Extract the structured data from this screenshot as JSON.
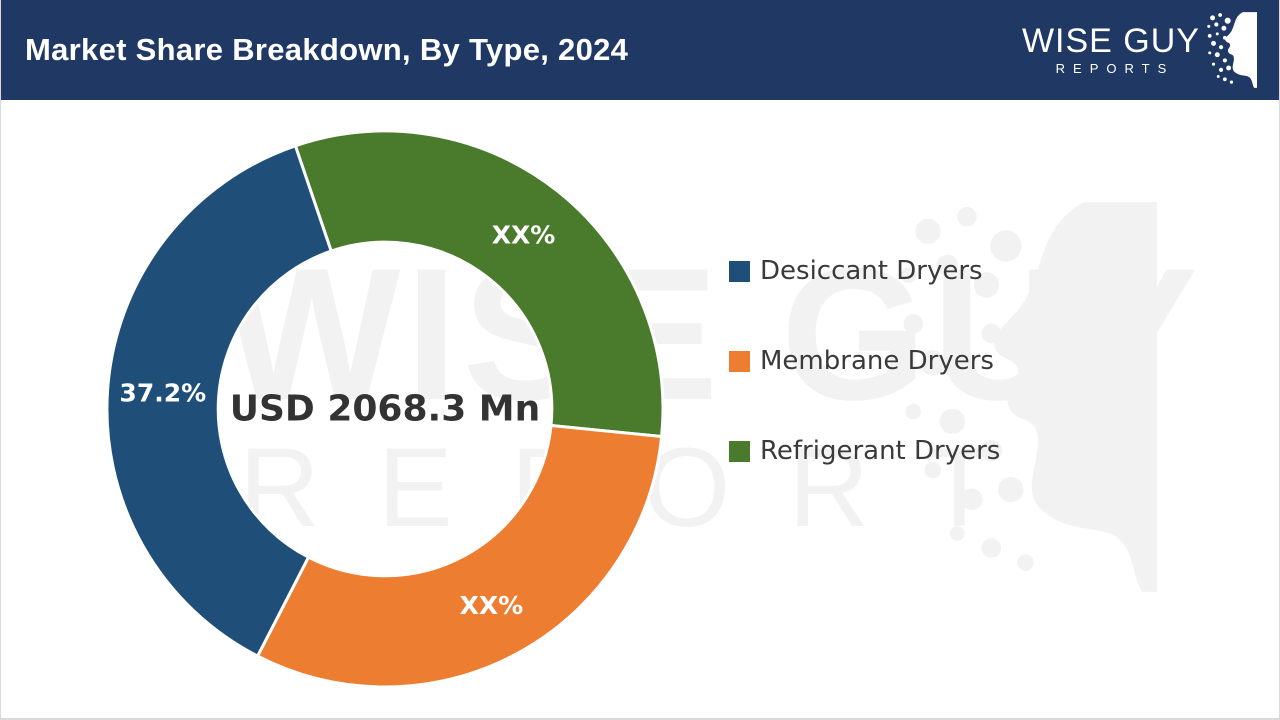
{
  "header": {
    "title": "Market Share Breakdown, By Type, 2024",
    "logo": {
      "wordmark": "WISE GUY",
      "subtext": "REPORTS"
    }
  },
  "watermark": {
    "line1": "WISE GUY",
    "line2": "REPORTS"
  },
  "chart_data": {
    "type": "donut",
    "title": "Market Share Breakdown, By Type, 2024",
    "center_label": "USD 2068.3 Mn",
    "units": "percent of market share",
    "start_angle_deg": -18.8,
    "inner_radius_ratio": 0.6,
    "legend_position": "right",
    "grid": false,
    "segments": [
      {
        "name": "Refrigerant Dryers",
        "value_pct": 31.8,
        "label": "XX%",
        "color": "#4a7a2b"
      },
      {
        "name": "Membrane Dryers",
        "value_pct": 31.0,
        "label": "XX%",
        "color": "#ed7d31"
      },
      {
        "name": "Desiccant Dryers",
        "value_pct": 37.2,
        "label": "37.2%",
        "color": "#1f4e79"
      }
    ],
    "legend": [
      {
        "label": "Desiccant Dryers",
        "color": "#1f4e79"
      },
      {
        "label": "Membrane Dryers",
        "color": "#ed7d31"
      },
      {
        "label": "Refrigerant Dryers",
        "color": "#4a7a2b"
      }
    ]
  },
  "colors": {
    "header_bg": "#1f3864",
    "page_bg": "#ffffff",
    "center_text": "#333333",
    "legend_text": "#3a3a3a",
    "separator": "#ffffff",
    "watermark": "#f2f2f2",
    "border": "#d9d9d9"
  }
}
